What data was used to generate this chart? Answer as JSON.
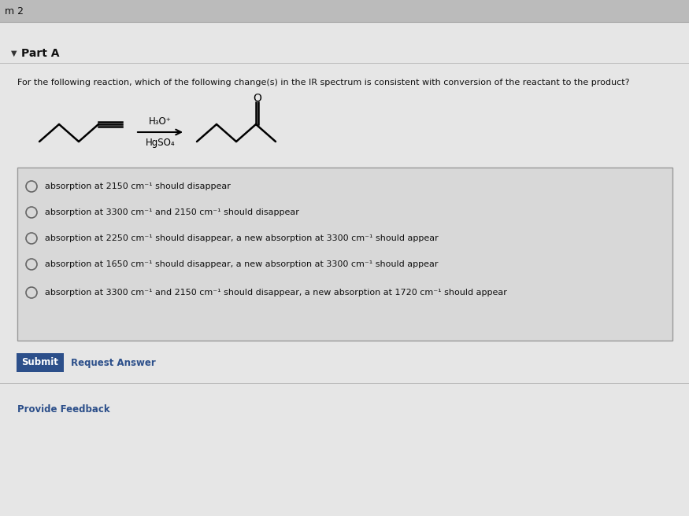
{
  "bg_color": "#d4d4d4",
  "header_bg": "#c0c0c0",
  "header_text": "m 2",
  "part_label": "Part A",
  "question_text": "For the following reaction, which of the following change(s) in the IR spectrum is consistent with conversion of the reactant to the product?",
  "reagent_top": "H₃O⁺",
  "reagent_bottom": "HgSO₄",
  "options": [
    "absorption at 2150 cm⁻¹ should disappear",
    "absorption at 3300 cm⁻¹ and 2150 cm⁻¹ should disappear",
    "absorption at 2250 cm⁻¹ should disappear, a new absorption at 3300 cm⁻¹ should appear",
    "absorption at 1650 cm⁻¹ should disappear, a new absorption at 3300 cm⁻¹ should appear",
    "absorption at 3300 cm⁻¹ and 2150 cm⁻¹ should disappear, a new absorption at 1720 cm⁻¹ should appear"
  ],
  "submit_btn_color": "#2c4f8a",
  "submit_text": "Submit",
  "request_answer_text": "Request Answer",
  "provide_feedback_text": "Provide Feedback",
  "options_box_bg": "#d8d8d8",
  "options_box_edge": "#999999",
  "white_area_bg": "#e8e8e8"
}
